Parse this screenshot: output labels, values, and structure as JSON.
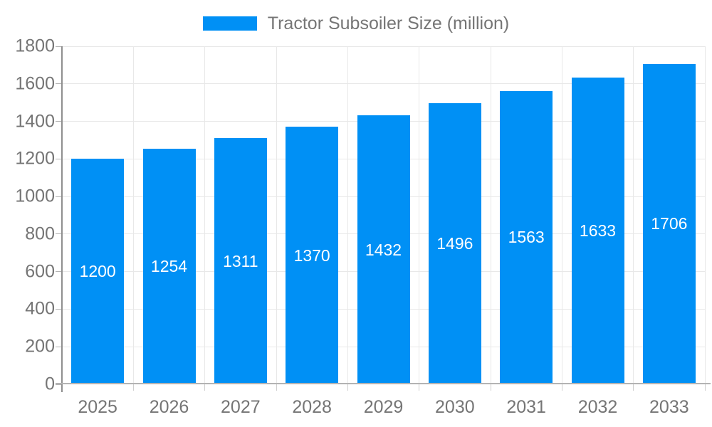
{
  "chart_data": {
    "type": "bar",
    "title": "Tractor Subsoiler Size (million)",
    "legend_position": "top",
    "categories": [
      "2025",
      "2026",
      "2027",
      "2028",
      "2029",
      "2030",
      "2031",
      "2032",
      "2033"
    ],
    "series": [
      {
        "name": "Tractor Subsoiler Size (million)",
        "values": [
          1200,
          1254,
          1311,
          1370,
          1432,
          1496,
          1563,
          1633,
          1706
        ]
      }
    ],
    "values": [
      1200,
      1254,
      1311,
      1370,
      1432,
      1496,
      1563,
      1633,
      1706
    ],
    "bar_value_labels": true,
    "xlabel": "",
    "ylabel": "",
    "ylim": [
      0,
      1800
    ],
    "yticks": [
      0,
      200,
      400,
      600,
      800,
      1000,
      1200,
      1400,
      1600,
      1800
    ],
    "grid": true,
    "colors": {
      "bar": "#0090F5",
      "value_label": "#FFFFFF",
      "axis_text": "#757575",
      "grid": "#E8E8E8",
      "x_axis": "#B3B3B3",
      "y_axis": "#8F8F8F",
      "tick_y": "#B3B3B3",
      "tick_x": "#CFCFCF"
    }
  }
}
